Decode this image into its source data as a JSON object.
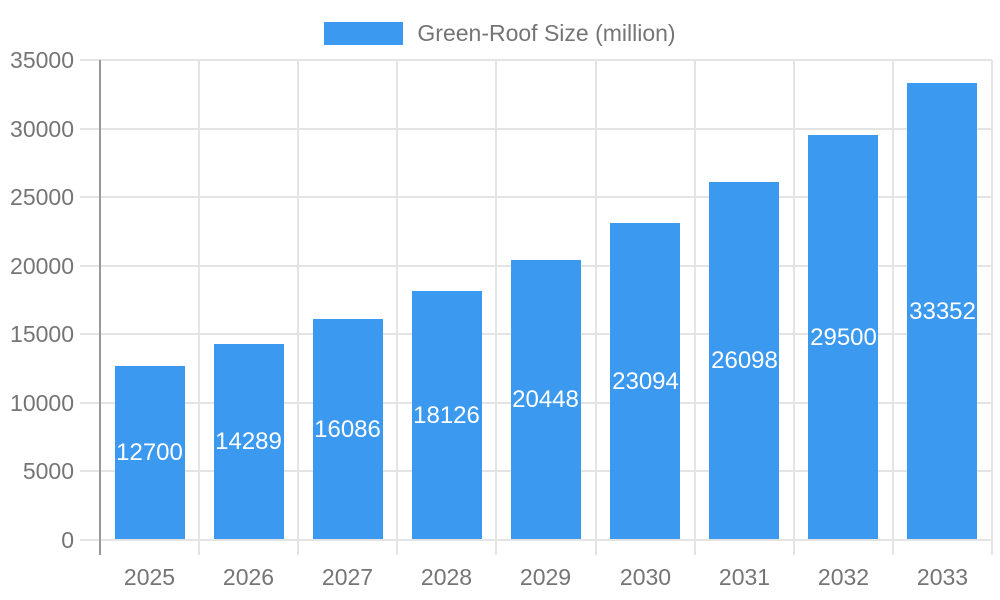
{
  "chart_data": {
    "type": "bar",
    "title": "Green-Roof Size (million)",
    "categories": [
      "2025",
      "2026",
      "2027",
      "2028",
      "2029",
      "2030",
      "2031",
      "2032",
      "2033"
    ],
    "values": [
      12700,
      14289,
      16086,
      18126,
      20448,
      23094,
      26098,
      29500,
      33352
    ],
    "xlabel": "",
    "ylabel": "",
    "ylim": [
      0,
      35000
    ],
    "ytick_step": 5000,
    "grid": true,
    "legend_position": "top",
    "value_labels": "inside-center",
    "colors": {
      "bar": "#3B99EF",
      "grid": "#E4E4E4",
      "axis": "#999999",
      "tick_text": "#757575",
      "value_label": "#FFFFFF",
      "background": "#FFFFFF"
    }
  }
}
